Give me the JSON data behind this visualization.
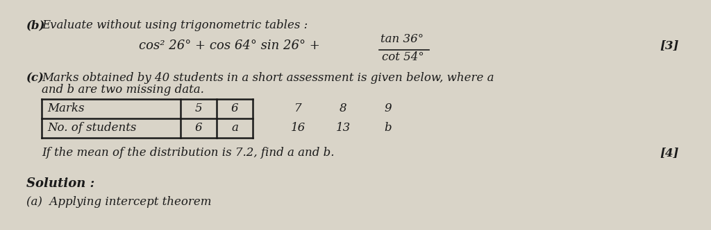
{
  "bg_color": "#d9d4c8",
  "text_color": "#1a1a1a",
  "part_b_label": "(b)",
  "part_b_text": "Evaluate without using trigonometric tables :",
  "formula_main": "cos² 26° + cos 64° sin 26° +",
  "formula_numerator": "tan 36°",
  "formula_denominator": "cot 54°",
  "marks_b": "[3]",
  "part_c_label": "(c)",
  "part_c_text": "Marks obtained by 40 students in a short assessment is given below, where a",
  "part_c_text2": "and b are two missing data.",
  "table_row1": [
    "Marks",
    "5",
    "6",
    "7",
    "8",
    "9"
  ],
  "table_row2": [
    "No. of students",
    "6",
    "a",
    "16",
    "13",
    "b"
  ],
  "part_c_bottom": "If the mean of the distribution is 7.2, find a and b.",
  "marks_c": "[4]",
  "solution_label": "Solution :",
  "part_a_partial": "(a)  Applying intercept theorem"
}
